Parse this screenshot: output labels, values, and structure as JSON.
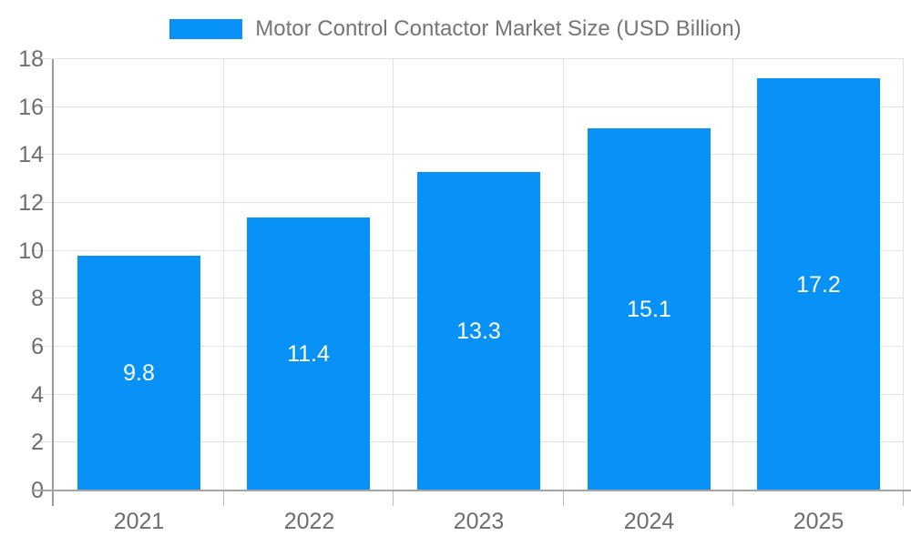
{
  "chart_data": {
    "type": "bar",
    "title": "Motor Control Contactor Market Size (USD Billion)",
    "categories": [
      "2021",
      "2022",
      "2023",
      "2024",
      "2025"
    ],
    "values": [
      9.8,
      11.4,
      13.3,
      15.1,
      17.2
    ],
    "value_labels": [
      "9.8",
      "11.4",
      "13.3",
      "15.1",
      "17.2"
    ],
    "xlabel": "",
    "ylabel": "",
    "ylim": [
      0,
      18
    ],
    "ytick_step": 2,
    "ytick_labels": [
      "0",
      "2",
      "4",
      "6",
      "8",
      "10",
      "12",
      "14",
      "16",
      "18"
    ],
    "grid": true,
    "legend_position": "top-center",
    "colors": {
      "bar": "#0892F8",
      "gridline": "#e2e2e2",
      "axis_line": "#a5a5a5",
      "y_axis_line": "#9c9c9c",
      "tick_mark": "#bdbdbd",
      "tick_label": "#6e6e6e",
      "legend_text": "#757575",
      "value_label": "#ffffff",
      "background": "#ffffff"
    }
  }
}
